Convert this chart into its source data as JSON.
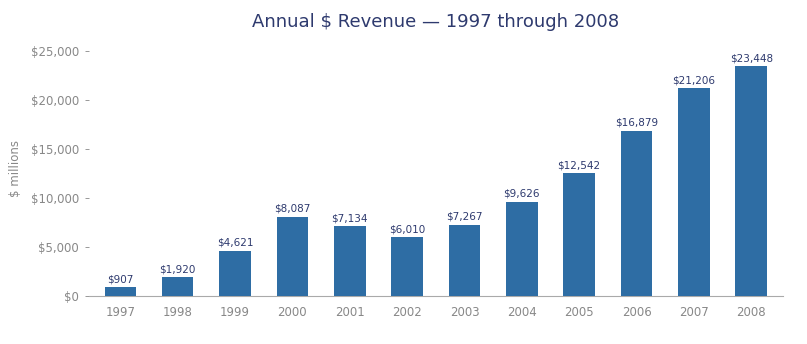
{
  "title": "Annual $ Revenue — 1997 through 2008",
  "ylabel": "$ millions",
  "categories": [
    "1997",
    "1998",
    "1999",
    "2000",
    "2001",
    "2002",
    "2003",
    "2004",
    "2005",
    "2006",
    "2007",
    "2008"
  ],
  "values": [
    907,
    1920,
    4621,
    8087,
    7134,
    6010,
    7267,
    9626,
    12542,
    16879,
    21206,
    23448
  ],
  "labels": [
    "$907",
    "$1,920",
    "$4,621",
    "$8,087",
    "$7,134",
    "$6,010",
    "$7,267",
    "$9,626",
    "$12,542",
    "$16,879",
    "$21,206",
    "$23,448"
  ],
  "bar_color": "#2E6DA4",
  "title_color": "#2E3A6E",
  "label_color": "#2E3A6E",
  "axis_color": "#888888",
  "spine_color": "#aaaaaa",
  "ylim": [
    0,
    26000
  ],
  "yticks": [
    0,
    5000,
    10000,
    15000,
    20000,
    25000
  ],
  "ytick_labels": [
    "$0",
    "$5,000",
    "$10,000",
    "$15,000",
    "$20,000",
    "$25,000"
  ],
  "background_color": "#ffffff",
  "title_fontsize": 13,
  "label_fontsize": 7.5,
  "tick_fontsize": 8.5,
  "bar_width": 0.55
}
